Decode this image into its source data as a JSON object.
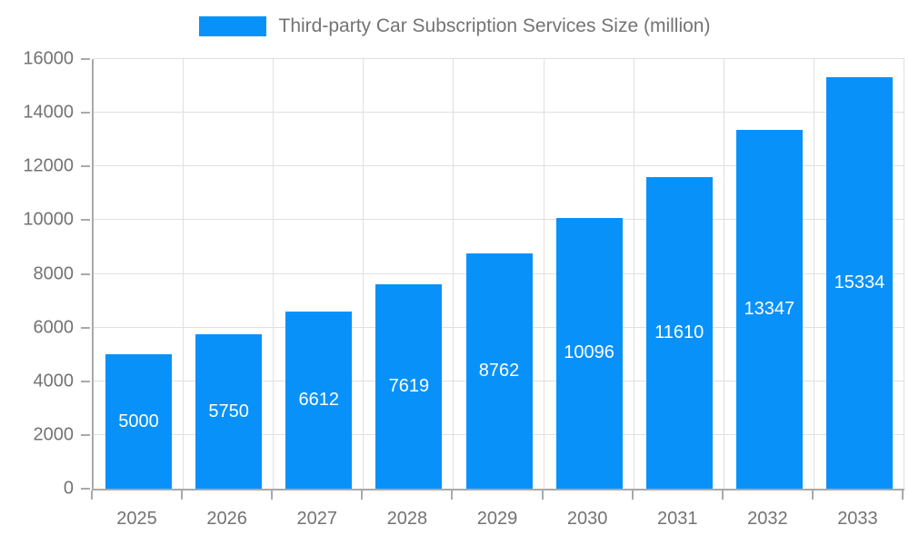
{
  "chart_data": {
    "type": "bar",
    "title": "Third-party Car Subscription Services Size (million)",
    "categories": [
      "2025",
      "2026",
      "2027",
      "2028",
      "2029",
      "2030",
      "2031",
      "2032",
      "2033"
    ],
    "values": [
      5000,
      5750,
      6612,
      7619,
      8762,
      10096,
      11610,
      13347,
      15334
    ],
    "xlabel": "",
    "ylabel": "",
    "ylim": [
      0,
      16000
    ],
    "ytick_step": 2000,
    "ytick_labels": [
      "0",
      "2000",
      "4000",
      "6000",
      "8000",
      "10000",
      "12000",
      "14000",
      "16000"
    ],
    "grid": true,
    "legend_position": "top-center",
    "bar_labels_inside": true,
    "colors": {
      "bar": "#0991fa",
      "bar_label": "#ffffff",
      "axis_text": "#737373",
      "grid_line": "#e0e0e0",
      "axis_line": "#a9a9a9",
      "background": "#ffffff"
    }
  }
}
